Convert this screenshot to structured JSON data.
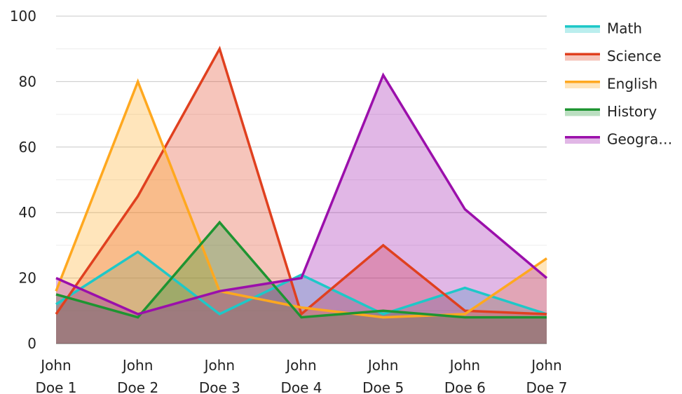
{
  "chart_data": {
    "type": "area",
    "title": "",
    "xlabel": "",
    "ylabel": "",
    "ylim": [
      0,
      100
    ],
    "yticks": [
      0,
      20,
      40,
      60,
      80,
      100
    ],
    "grid": true,
    "legend_position": "right",
    "categories": [
      [
        "John",
        "Doe 1"
      ],
      [
        "John",
        "Doe 2"
      ],
      [
        "John",
        "Doe 3"
      ],
      [
        "John",
        "Doe 4"
      ],
      [
        "John",
        "Doe 5"
      ],
      [
        "John",
        "Doe 6"
      ],
      [
        "John",
        "Doe 7"
      ]
    ],
    "series": [
      {
        "name": "Math",
        "legend_label": "Math",
        "color": "#1ec8c8",
        "values": [
          12,
          28,
          9,
          21,
          9,
          17,
          9
        ]
      },
      {
        "name": "Science",
        "legend_label": "Science",
        "color": "#e0401f",
        "values": [
          9,
          45,
          90,
          9,
          30,
          10,
          9
        ]
      },
      {
        "name": "English",
        "legend_label": "English",
        "color": "#ffa81f",
        "values": [
          16,
          80,
          16,
          11,
          8,
          9,
          26
        ]
      },
      {
        "name": "History",
        "legend_label": "History",
        "color": "#1e9431",
        "values": [
          15,
          8,
          37,
          8,
          10,
          8,
          8
        ]
      },
      {
        "name": "Geography",
        "legend_label": "Geogra…",
        "color": "#9b0fab",
        "values": [
          20,
          9,
          16,
          20,
          82,
          41,
          20
        ]
      }
    ]
  }
}
